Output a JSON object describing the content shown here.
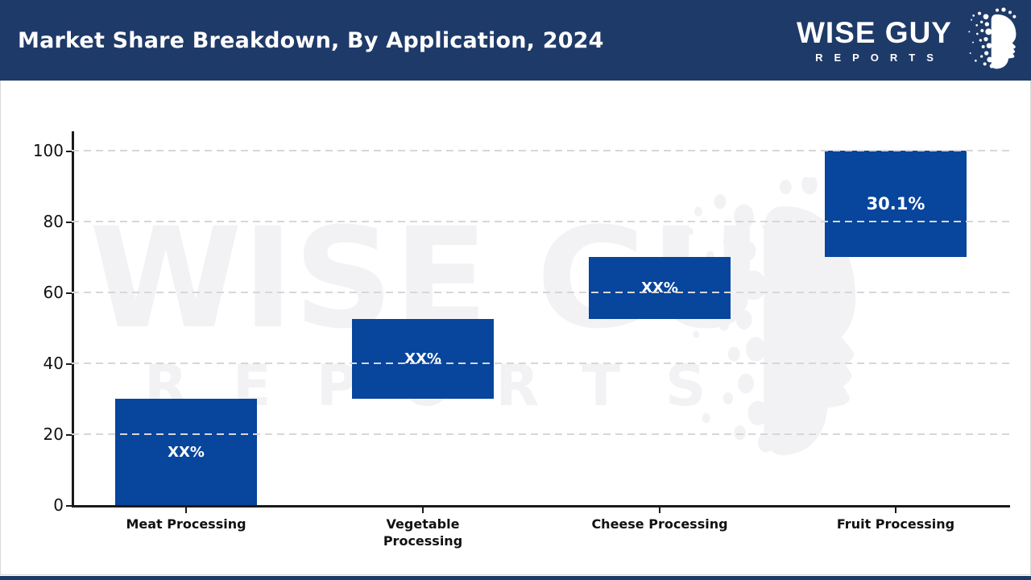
{
  "header": {
    "title": "Market Share Breakdown, By Application, 2024",
    "logo": {
      "line1": "WISE GUY",
      "line2": "REPORTS"
    }
  },
  "watermark": {
    "line1": "WISE GUY",
    "line2": "REPORTS"
  },
  "chart_data": {
    "type": "bar",
    "subtype": "waterfall",
    "title": "Market Share Breakdown, By Application, 2024",
    "categories": [
      "Meat Processing",
      "Vegetable\nProcessing",
      "Cheese Processing",
      "Fruit Processing"
    ],
    "series": [
      {
        "name": "Meat Processing",
        "start": 0,
        "end": 30,
        "label": "XX%",
        "highlight": false
      },
      {
        "name": "Vegetable Processing",
        "start": 30,
        "end": 52.5,
        "label": "XX%",
        "highlight": false
      },
      {
        "name": "Cheese Processing",
        "start": 52.5,
        "end": 70,
        "label": "XX%",
        "highlight": false
      },
      {
        "name": "Fruit Processing",
        "start": 70,
        "end": 100.1,
        "label": "30.1%",
        "highlight": true
      }
    ],
    "ylim": [
      0,
      100
    ],
    "yticks": [
      0,
      20,
      40,
      60,
      80,
      100
    ],
    "grid": "horizontal-dashed",
    "legend": "none",
    "bar_color": "#08459c",
    "label_color": "#ffffff",
    "grid_color": "#d7d7d7",
    "axis_color": "#1a1a1a",
    "header_color": "#1e3a68"
  }
}
